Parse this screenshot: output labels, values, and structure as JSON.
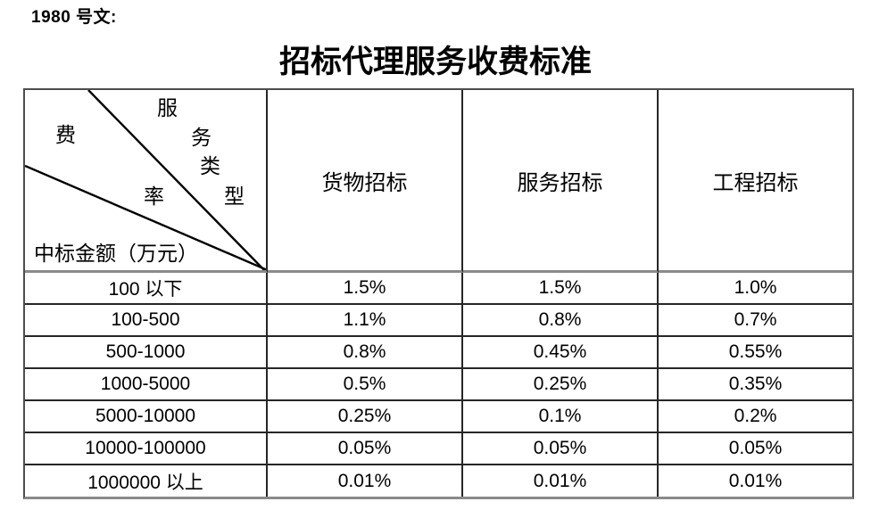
{
  "doc": {
    "ref_label": "1980 号文:",
    "title": "招标代理服务收费标准"
  },
  "table": {
    "corner": {
      "diag_chars": [
        "服",
        "务",
        "类",
        "型",
        "费",
        "率"
      ],
      "amount_label": "中标金额（万元）"
    },
    "columns": [
      "货物招标",
      "服务招标",
      "工程招标"
    ],
    "rows": [
      {
        "range": "100 以下",
        "goods": "1.5%",
        "services": "1.5%",
        "works": "1.0%"
      },
      {
        "range": "100-500",
        "goods": "1.1%",
        "services": "0.8%",
        "works": "0.7%"
      },
      {
        "range": "500-1000",
        "goods": "0.8%",
        "services": "0.45%",
        "works": "0.55%"
      },
      {
        "range": "1000-5000",
        "goods": "0.5%",
        "services": "0.25%",
        "works": "0.35%"
      },
      {
        "range": "5000-10000",
        "goods": "0.25%",
        "services": "0.1%",
        "works": "0.2%"
      },
      {
        "range": "10000-100000",
        "goods": "0.05%",
        "services": "0.05%",
        "works": "0.05%"
      },
      {
        "range": "1000000 以上",
        "goods": "0.01%",
        "services": "0.01%",
        "works": "0.01%"
      }
    ],
    "colors": {
      "background": "#ffffff",
      "text": "#000000",
      "inner_border": "#262626",
      "outer_border": "#4d4d4d",
      "header_separator": "#8a8a8a"
    }
  }
}
